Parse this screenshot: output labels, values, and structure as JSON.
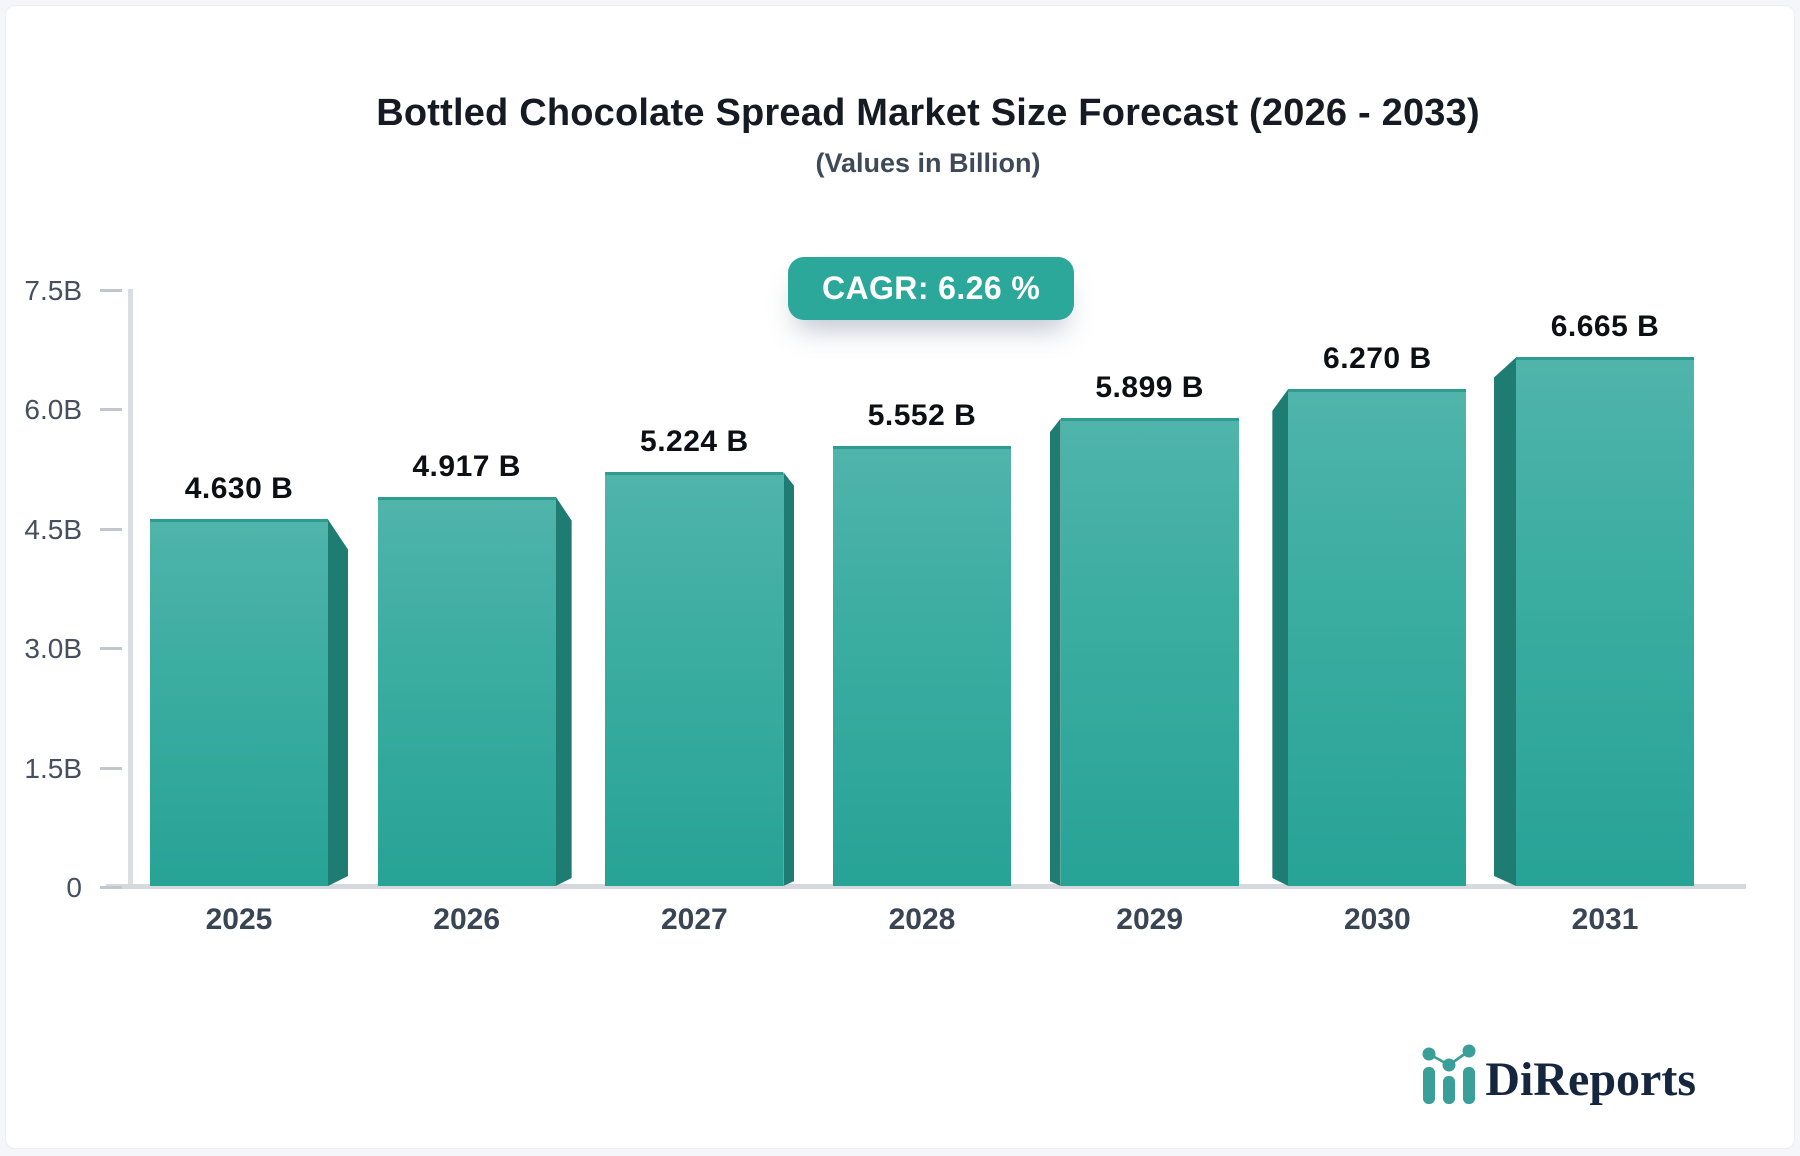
{
  "title": "Bottled Chocolate Spread Market Size Forecast (2026 - 2033)",
  "subtitle": "(Values in Billion)",
  "badge": {
    "label": "CAGR:",
    "value": "6.26 %"
  },
  "chart_data": {
    "type": "bar",
    "categories": [
      "2025",
      "2026",
      "2027",
      "2028",
      "2029",
      "2030",
      "2031"
    ],
    "values": [
      4.63,
      4.917,
      5.224,
      5.552,
      5.899,
      6.27,
      6.665
    ],
    "value_labels": [
      "4.630 B",
      "4.917 B",
      "5.224 B",
      "5.552 B",
      "5.899 B",
      "6.270 B",
      "6.665 B"
    ],
    "title": "Bottled Chocolate Spread Market Size Forecast (2026 - 2033)",
    "xlabel": "",
    "ylabel": "",
    "ylim": [
      0,
      7.5
    ],
    "yticks": [
      {
        "label": "7.5B",
        "value": 7.5
      },
      {
        "label": "6.0B",
        "value": 6.0
      },
      {
        "label": "4.5B",
        "value": 4.5
      },
      {
        "label": "3.0B",
        "value": 3.0
      },
      {
        "label": "1.5B",
        "value": 1.5
      },
      {
        "label": "0",
        "value": 0
      }
    ],
    "grid": false,
    "legend": false,
    "bar_face_top_color": "#50b4ab",
    "bar_face_bottom_color": "#27a396",
    "bar_side_color": "#1f7c72",
    "axis_color": "#d5d8dc",
    "label_color": "#3a4554"
  },
  "colors": {
    "accent_teal": "#2ba89a",
    "logo_teal": "#3a9e99",
    "logo_navy": "#15263e",
    "background": "#ffffff",
    "page_background": "#f5f6f9"
  },
  "logo": {
    "text": "DiReports",
    "icon": "bar-chart-logo-icon"
  }
}
